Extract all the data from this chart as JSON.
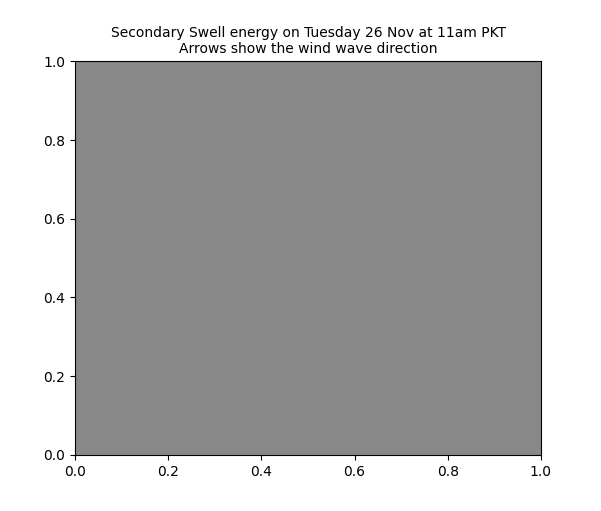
{
  "title": "Secondary Swell energy on Tuesday 26 Nov at 11am PKT",
  "subtitle": "Arrows show the wind wave direction",
  "title_fontsize": 13,
  "subtitle_fontsize": 10,
  "extent": [
    43.0,
    83.0,
    14.0,
    45.0
  ],
  "figsize": [
    6.01,
    5.11
  ],
  "dpi": 100,
  "background_color": "#ffffff",
  "border_color": "#000000",
  "border_linewidth": 0.5,
  "title_color": "#000000"
}
